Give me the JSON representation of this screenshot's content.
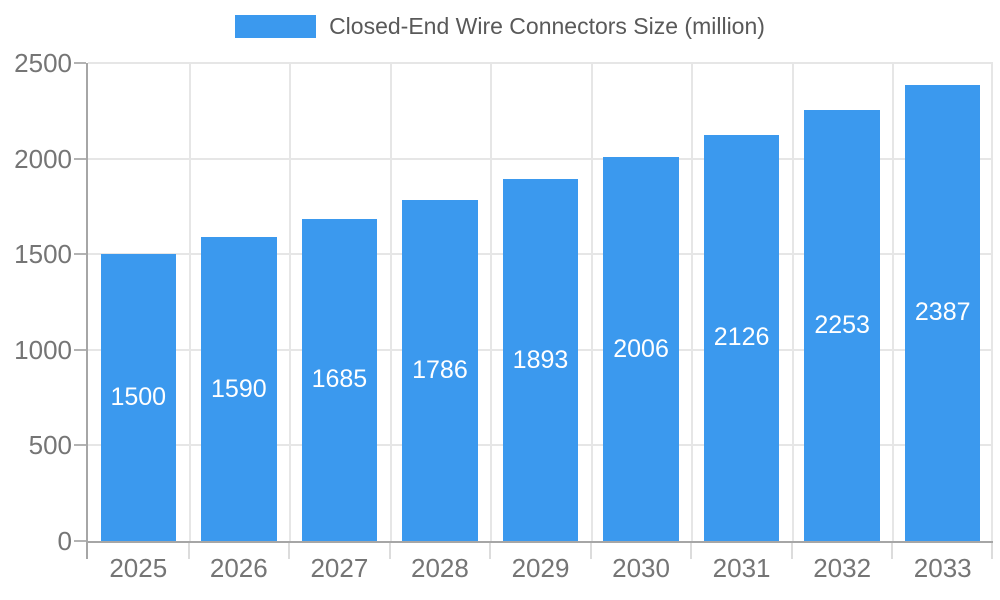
{
  "chart_data": {
    "type": "bar",
    "title": "Closed-End Wire Connectors Size (million)",
    "categories": [
      "2025",
      "2026",
      "2027",
      "2028",
      "2029",
      "2030",
      "2031",
      "2032",
      "2033"
    ],
    "series": [
      {
        "name": "Closed-End Wire Connectors Size (million)",
        "values": [
          1500,
          1590,
          1685,
          1786,
          1893,
          2006,
          2126,
          2253,
          2387
        ]
      }
    ],
    "value_labels": [
      "1500",
      "1590",
      "1685",
      "1786",
      "1893",
      "2006",
      "2126",
      "2253",
      "2387"
    ],
    "xlabel": "",
    "ylabel": "",
    "ylim": [
      0,
      2500
    ],
    "y_ticks": [
      0,
      500,
      1000,
      1500,
      2000,
      2500
    ],
    "grid": true,
    "legend_position": "top-center",
    "colors": {
      "bar": "#3b99ee",
      "grid": "#e6e6e6",
      "axis": "#a6a6a6",
      "y_tick_mark": "#b3b3b3",
      "x_tick_mark": "#dcdcdc",
      "tick_label": "#757575",
      "legend_text": "#595959",
      "value_label": "#ffffff",
      "background": "#ffffff"
    }
  }
}
